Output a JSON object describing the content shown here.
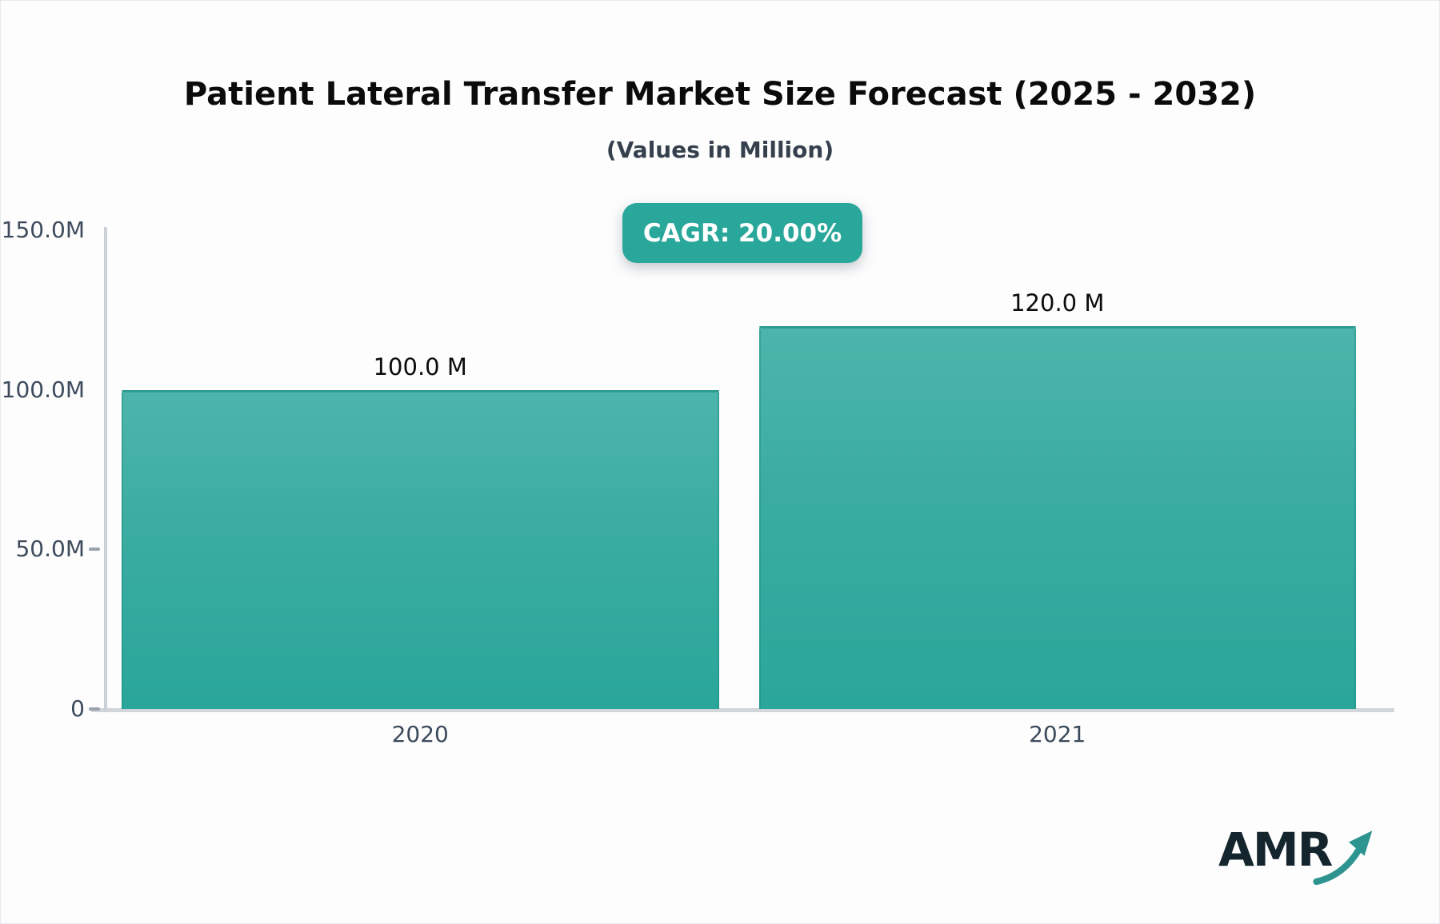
{
  "page": {
    "title": "Patient Lateral Transfer Market Size Forecast (2025 - 2032)",
    "subtitle": "(Values in Million)",
    "cagr_badge": "CAGR: 20.00%",
    "logo_text": "AMR"
  },
  "colors": {
    "bar_gradient_top": "#4db5ab",
    "bar_gradient_bottom": "#2aa69a",
    "badge_background": "#2aa79b",
    "badge_text": "#ffffff",
    "axis_line": "#ccd1d8",
    "tick_text": "#3d4b5c",
    "title_text": "#0b0b0b",
    "subtitle_text": "#36404d",
    "logo_dark": "#15252d",
    "logo_arrow_teal": "#2d9490"
  },
  "chart_data": {
    "type": "bar",
    "title": "Patient Lateral Transfer Market Size Forecast (2025 - 2032)",
    "subtitle": "(Values in Million)",
    "cagr_percent": 20.0,
    "unit": "Million",
    "categories": [
      "2020",
      "2021"
    ],
    "values": [
      100.0,
      120.0
    ],
    "value_labels": [
      "100.0 M",
      "120.0 M"
    ],
    "xlabel": "",
    "ylabel": "",
    "ylim": [
      0,
      150
    ],
    "y_ticks": [
      {
        "label": "150.0M",
        "value": 150,
        "dash": false
      },
      {
        "label": "100.0M",
        "value": 100,
        "dash": false
      },
      {
        "label": "50.0M",
        "value": 50,
        "dash": true
      },
      {
        "label": "0",
        "value": 0,
        "dash": true
      }
    ],
    "grid": false,
    "legend_position": "none"
  }
}
